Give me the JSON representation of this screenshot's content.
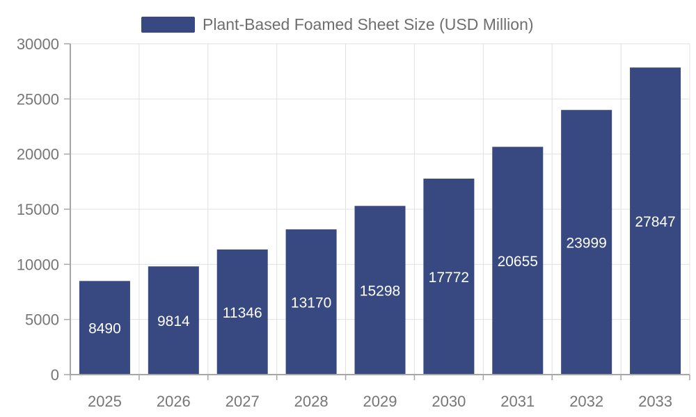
{
  "chart_data": {
    "type": "bar",
    "title": "Plant-Based Foamed Sheet Size (USD Million)",
    "legend": {
      "label": "Plant-Based Foamed Sheet Size (USD Million)",
      "position": "top"
    },
    "categories": [
      "2025",
      "2026",
      "2027",
      "2028",
      "2029",
      "2030",
      "2031",
      "2032",
      "2033"
    ],
    "series": [
      {
        "name": "Plant-Based Foamed Sheet Size (USD Million)",
        "values": [
          8490,
          9814,
          11346,
          13170,
          15298,
          17772,
          20655,
          23999,
          27847
        ]
      }
    ],
    "xlabel": "",
    "ylabel": "",
    "ylim": [
      0,
      30000
    ],
    "yticks": [
      0,
      5000,
      10000,
      15000,
      20000,
      25000,
      30000
    ],
    "grid": true,
    "value_labels": "inside-center"
  },
  "colors": {
    "bar": "#374980",
    "grid": "#E0E0E0",
    "axis": "#A6A6A6",
    "axis_label": "#767676",
    "legend_text": "#6E6E6E",
    "value_label": "#FFFFFF",
    "background": "#FFFFFF"
  }
}
